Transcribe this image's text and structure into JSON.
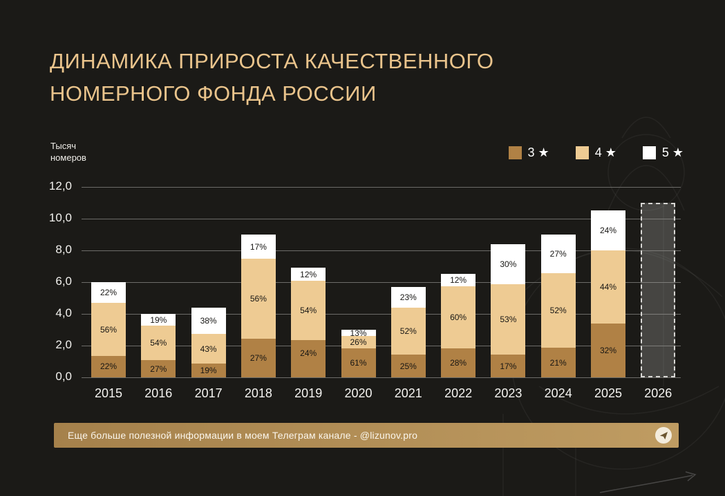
{
  "title": {
    "text": "ДИНАМИКА ПРИРОСТА КАЧЕСТВЕННОГО\nНОМЕРНОГО ФОНДА РОССИИ",
    "color": "#eac48c"
  },
  "y_axis": {
    "unit_label": "Тысяч\nномеров",
    "ticks": [
      "12,0",
      "10,0",
      "8,0",
      "6,0",
      "4,0",
      "2,0",
      "0,0"
    ],
    "max": 12,
    "step": 2
  },
  "legend": {
    "items": [
      {
        "key": "3-star",
        "label": "3 ★",
        "color": "#b08145"
      },
      {
        "key": "4-star",
        "label": "4 ★",
        "color": "#eecb93"
      },
      {
        "key": "5-star",
        "label": "5 ★",
        "color": "#ffffff"
      }
    ]
  },
  "chart_data": {
    "type": "bar",
    "stacked": true,
    "title": "Динамика прироста качественного номерного фонда России",
    "ylabel": "Тысяч номеров",
    "ylim": [
      0,
      12
    ],
    "grid": true,
    "legend_position": "top-right",
    "categories": [
      "2015",
      "2016",
      "2017",
      "2018",
      "2019",
      "2020",
      "2021",
      "2022",
      "2023",
      "2024",
      "2025",
      "2026"
    ],
    "totals": [
      6.0,
      4.0,
      4.4,
      9.0,
      6.9,
      3.0,
      5.7,
      6.5,
      8.4,
      9.0,
      10.5,
      11.0
    ],
    "series": [
      {
        "key": "3-star",
        "name": "3★",
        "color": "#b08145",
        "percent": [
          22,
          27,
          19,
          27,
          24,
          61,
          25,
          28,
          17,
          21,
          32,
          null
        ]
      },
      {
        "key": "4-star",
        "name": "4★",
        "color": "#eecb93",
        "percent": [
          56,
          54,
          43,
          56,
          54,
          26,
          52,
          60,
          53,
          52,
          44,
          null
        ]
      },
      {
        "key": "5-star",
        "name": "5★",
        "color": "#ffffff",
        "percent": [
          22,
          19,
          38,
          17,
          12,
          13,
          23,
          12,
          30,
          27,
          24,
          null
        ]
      }
    ],
    "forecast_year": "2026",
    "forecast_total": 11.0
  },
  "footer": {
    "text": "Еще больше полезной информации в моем Телеграм канале - @lizunov.pro",
    "icon": "telegram-icon"
  }
}
